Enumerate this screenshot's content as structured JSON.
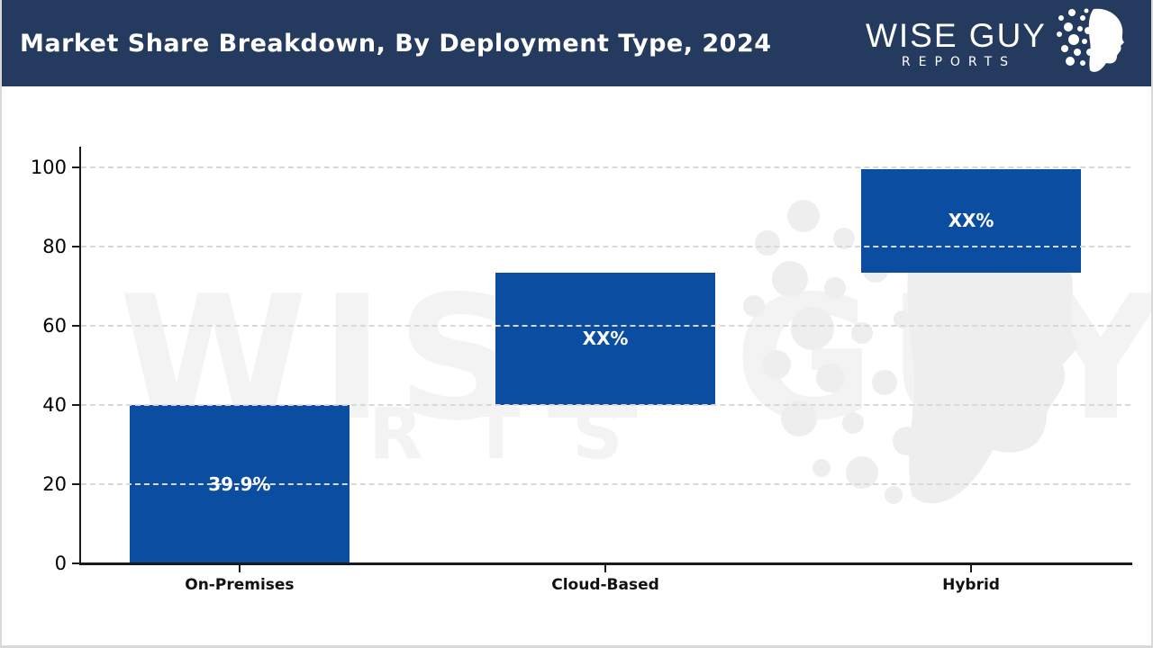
{
  "header": {
    "title": "Market Share Breakdown, By Deployment Type, 2024",
    "logo": {
      "line1": "WISE GUY",
      "line2": "REPORTS"
    }
  },
  "watermark": {
    "line1": "WISE GUY",
    "line2": "PORTS"
  },
  "colors": {
    "header_bg": "#243A5E",
    "bar": "#0B4DA1",
    "grid": "#d9d9d9",
    "axis": "#1a1a1a",
    "title_text": "#ffffff",
    "bar_label_text": "#ffffff",
    "tick_text": "#000000",
    "watermark": "#f3f3f3"
  },
  "chart_data": {
    "type": "bar",
    "subtype": "floating-segment waterfall",
    "title": "Market Share Breakdown, By Deployment Type, 2024",
    "categories": [
      "On-Premises",
      "Cloud-Based",
      "Hybrid"
    ],
    "segments": [
      {
        "category": "On-Premises",
        "start": 0,
        "end": 39.9,
        "label": "39.9%"
      },
      {
        "category": "Cloud-Based",
        "start": 40,
        "end": 73.5,
        "label": "XX%"
      },
      {
        "category": "Hybrid",
        "start": 73.5,
        "end": 99.5,
        "label": "XX%"
      }
    ],
    "xlabel": "",
    "ylabel": "",
    "yticks": [
      0,
      20,
      40,
      60,
      80,
      100
    ],
    "ylim": [
      0,
      105
    ],
    "grid": "dashed horizontal gridlines, drawn over bars",
    "legend": null
  }
}
